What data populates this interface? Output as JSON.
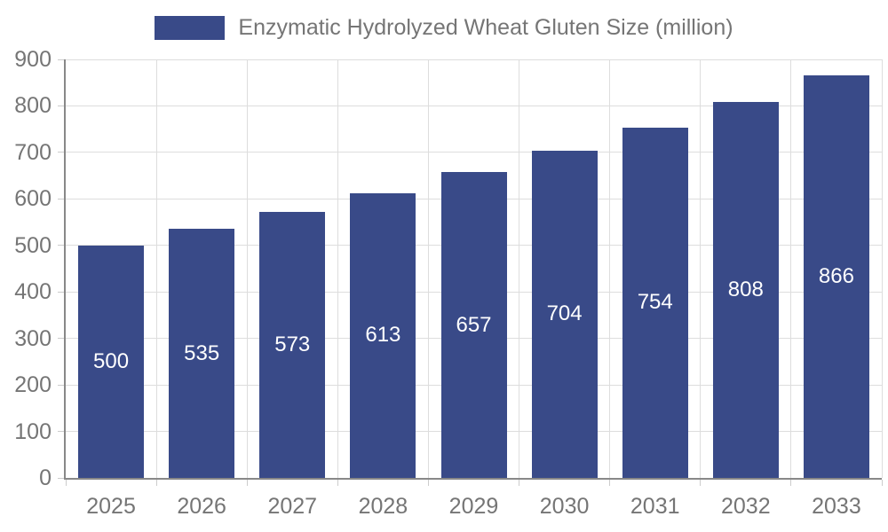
{
  "legend": {
    "label": "Enzymatic Hydrolyzed Wheat Gluten Size (million)"
  },
  "chart_data": {
    "type": "bar",
    "title": "Enzymatic Hydrolyzed Wheat Gluten Size (million)",
    "categories": [
      "2025",
      "2026",
      "2027",
      "2028",
      "2029",
      "2030",
      "2031",
      "2032",
      "2033"
    ],
    "values": [
      500,
      535,
      573,
      613,
      657,
      704,
      754,
      808,
      866
    ],
    "xlabel": "",
    "ylabel": "",
    "ylim": [
      0,
      900
    ],
    "yticks": [
      0,
      100,
      200,
      300,
      400,
      500,
      600,
      700,
      800,
      900
    ],
    "grid": true,
    "legend_position": "top-center",
    "value_labels_position": "inside-center",
    "colors": {
      "bar": "#394A88",
      "value_label": "#FFFFFF",
      "axis": "#888888",
      "grid": "#DDDDDD",
      "tick": "#CCCCCC",
      "tick_label": "#757575",
      "legend_text": "#757575",
      "background": "#FFFFFF"
    }
  }
}
